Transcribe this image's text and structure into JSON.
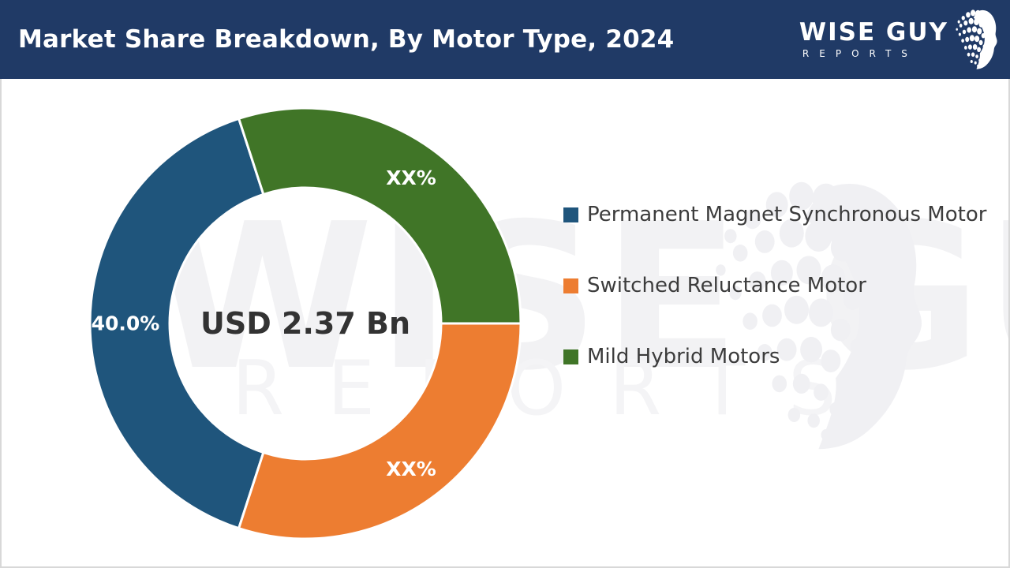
{
  "header": {
    "title": "Market Share Breakdown, By Motor Type, 2024",
    "logo": {
      "brand_line1": "WISE GUY",
      "brand_line2": "REPORTS"
    }
  },
  "watermark": {
    "line1": "WISE GUY",
    "line2": "REPORTS"
  },
  "chart_data": {
    "type": "pie",
    "subtype": "donut",
    "title": "Market Share Breakdown, By Motor Type, 2024",
    "center_label": "USD 2.37 Bn",
    "start_angle_deg": 108,
    "direction": "counterclockwise",
    "donut_hole_ratio": 0.63,
    "legend_position": "right",
    "slices": [
      {
        "label": "Permanent Magnet Synchronous Motor",
        "value_display": "40.0%",
        "value_pct": 40.0,
        "color": "#1F557C"
      },
      {
        "label": "Switched Reluctance Motor",
        "value_display": "XX%",
        "value_pct": 30.0,
        "color": "#ED7D31"
      },
      {
        "label": "Mild Hybrid Motors",
        "value_display": "XX%",
        "value_pct": 30.0,
        "color": "#407527"
      }
    ]
  },
  "colors": {
    "header_bg": "#203A66",
    "title_text": "#FFFFFF",
    "center_text": "#333333",
    "legend_text": "#3C3C3C",
    "slice_label_text": "#FFFFFF",
    "slice_gap_stroke": "#FFFFFF",
    "watermark": "#F2F2F4",
    "content_border": "#D8D8D8"
  }
}
